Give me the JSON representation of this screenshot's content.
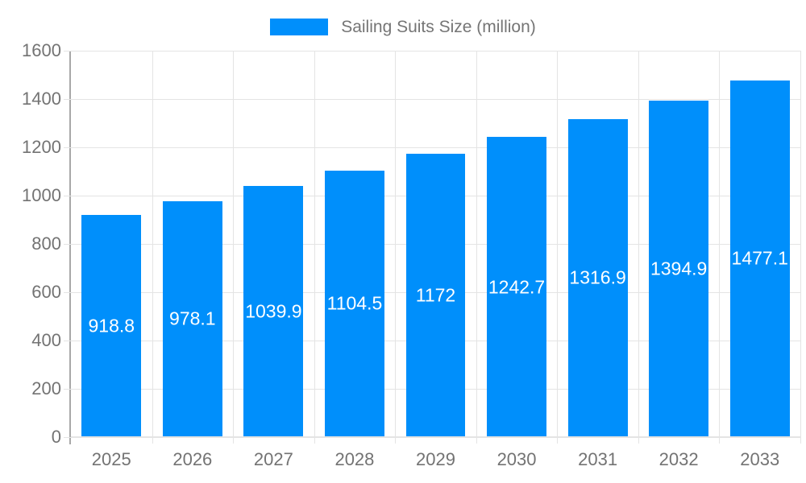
{
  "chart_data": {
    "type": "bar",
    "title": "Sailing Suits Size (million)",
    "legend_position": "top",
    "categories": [
      "2025",
      "2026",
      "2027",
      "2028",
      "2029",
      "2030",
      "2031",
      "2032",
      "2033"
    ],
    "values": [
      918.8,
      978.1,
      1039.9,
      1104.5,
      1172,
      1242.7,
      1316.9,
      1394.9,
      1477.1
    ],
    "value_labels": [
      "918.8",
      "978.1",
      "1039.9",
      "1104.5",
      "1172",
      "1242.7",
      "1316.9",
      "1394.9",
      "1477.1"
    ],
    "xlabel": "",
    "ylabel": "",
    "ylim": [
      0,
      1600
    ],
    "ytick_step": 200,
    "y_tick_labels": [
      "0",
      "200",
      "400",
      "600",
      "800",
      "1000",
      "1200",
      "1400",
      "1600"
    ],
    "grid": true,
    "colors": {
      "bar": "#008FFB",
      "bar_value_text": "#ffffff",
      "axis_text": "#737373",
      "legend_text": "#757575",
      "gridline": "#e4e4e4",
      "axis_line": "#a8a8a8",
      "background": "#ffffff"
    }
  }
}
